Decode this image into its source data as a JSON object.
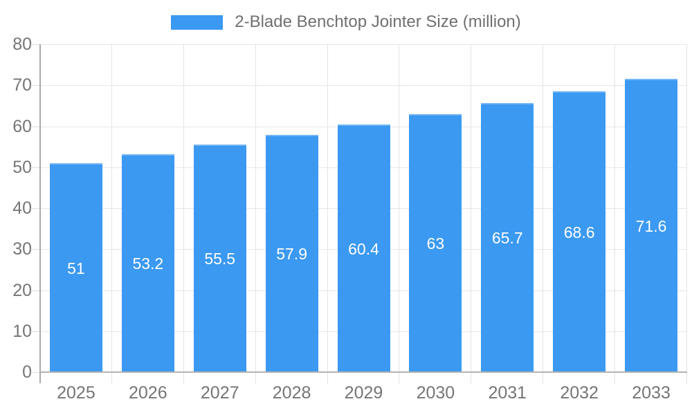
{
  "legend": {
    "label": "2-Blade Benchtop Jointer Size (million)"
  },
  "chart_data": {
    "type": "bar",
    "title": "2-Blade Benchtop Jointer Size (million)",
    "categories": [
      "2025",
      "2026",
      "2027",
      "2028",
      "2029",
      "2030",
      "2031",
      "2032",
      "2033"
    ],
    "series": [
      {
        "name": "2-Blade Benchtop Jointer Size (million)",
        "values": [
          51,
          53.2,
          55.5,
          57.9,
          60.4,
          63,
          65.7,
          68.6,
          71.6
        ]
      }
    ],
    "value_labels": [
      "51",
      "53.2",
      "55.5",
      "57.9",
      "60.4",
      "63",
      "65.7",
      "68.6",
      "71.6"
    ],
    "xlabel": "",
    "ylabel": "",
    "ylim": [
      0,
      80
    ],
    "ytick_step": 10,
    "grid": true,
    "legend_position": "top-center"
  },
  "colors": {
    "bar": "#3b99f1",
    "bar_top_edge": "#72b4f4",
    "grid": "#e6e6e6",
    "axis": "#b3b3b3",
    "text": "#757575",
    "value_label": "#ffffff",
    "background": "#ffffff"
  }
}
